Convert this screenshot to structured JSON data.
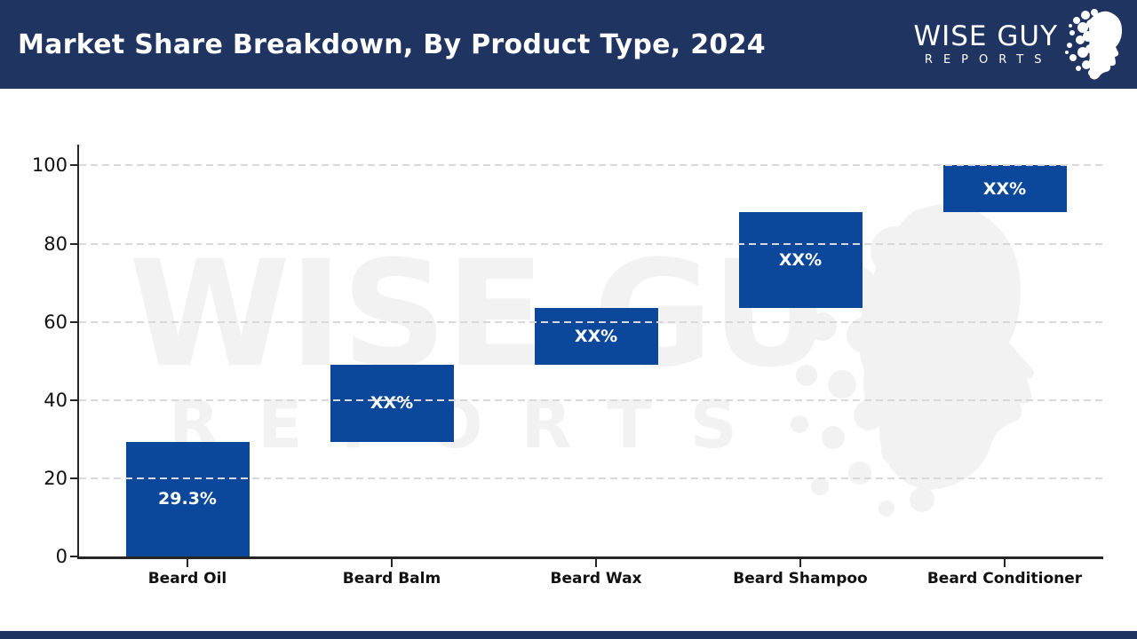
{
  "header": {
    "title": "Market Share Breakdown, By Product Type, 2024",
    "background": "#203462",
    "logo": {
      "line1": "WISE GUY",
      "line2": "REPORTS"
    }
  },
  "watermark": {
    "line1": "WISE GUY",
    "line2": "REPORTS",
    "color": "#f2f2f3"
  },
  "footer": {
    "background": "#203462"
  },
  "chart_data": {
    "type": "bar",
    "subtype": "floating_segment_waterfall",
    "title": "Market Share Breakdown, By Product Type, 2024",
    "categories": [
      "Beard Oil",
      "Beard Balm",
      "Beard Wax",
      "Beard Shampoo",
      "Beard Conditioner"
    ],
    "segments": [
      {
        "category": "Beard Oil",
        "start": 0,
        "end": 29.3,
        "label": "29.3%"
      },
      {
        "category": "Beard Balm",
        "start": 29.3,
        "end": 49,
        "label": "XX%"
      },
      {
        "category": "Beard Wax",
        "start": 49,
        "end": 63.5,
        "label": "XX%"
      },
      {
        "category": "Beard Shampoo",
        "start": 63.5,
        "end": 88,
        "label": "XX%"
      },
      {
        "category": "Beard Conditioner",
        "start": 88,
        "end": 100,
        "label": "XX%"
      }
    ],
    "y_ticks": [
      0,
      20,
      40,
      60,
      80,
      100
    ],
    "ylim": [
      0,
      105
    ],
    "xlabel": "",
    "ylabel": "",
    "grid": "horizontal-dashed",
    "legend": "none",
    "bar_color": "#0b489b",
    "bar_label_color": "#ffffff",
    "gridline_color": "#d9d9d9",
    "axis_color": "#262626"
  }
}
